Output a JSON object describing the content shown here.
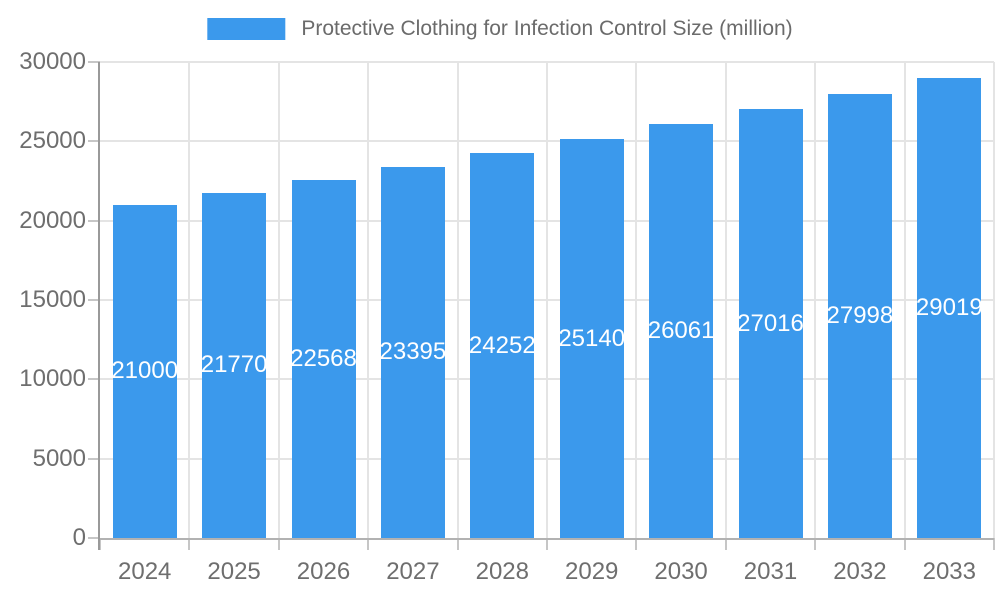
{
  "legend": {
    "label": "Protective Clothing for Infection Control Size (million)"
  },
  "chart_data": {
    "type": "bar",
    "title": "Protective Clothing for Infection Control Size (million)",
    "categories": [
      "2024",
      "2025",
      "2026",
      "2027",
      "2028",
      "2029",
      "2030",
      "2031",
      "2032",
      "2033"
    ],
    "values": [
      21000,
      21770,
      22568,
      23395,
      24252,
      25140,
      26061,
      27016,
      27998,
      29019
    ],
    "series": [
      {
        "name": "Protective Clothing for Infection Control Size (million)",
        "values": [
          21000,
          21770,
          22568,
          23395,
          24252,
          25140,
          26061,
          27016,
          27998,
          29019
        ]
      }
    ],
    "xlabel": "",
    "ylabel": "",
    "ylim": [
      0,
      30000
    ],
    "ytick_interval": 5000,
    "ytick_labels": [
      "0",
      "5000",
      "10000",
      "15000",
      "20000",
      "25000",
      "30000"
    ],
    "grid": true,
    "legend_position": "top",
    "bar_value_labels_shown": true,
    "colors": {
      "bar": "#3B99EC",
      "bar_label": "#ffffff",
      "axis_label": "#6e6e6e",
      "legend_text": "#6b6b6b",
      "gridline": "#e4e4e4",
      "tick": "#c6c6c6",
      "y_axis_line": "#999999",
      "x_axis_line": "#b2b2b2",
      "background": "#ffffff"
    }
  }
}
